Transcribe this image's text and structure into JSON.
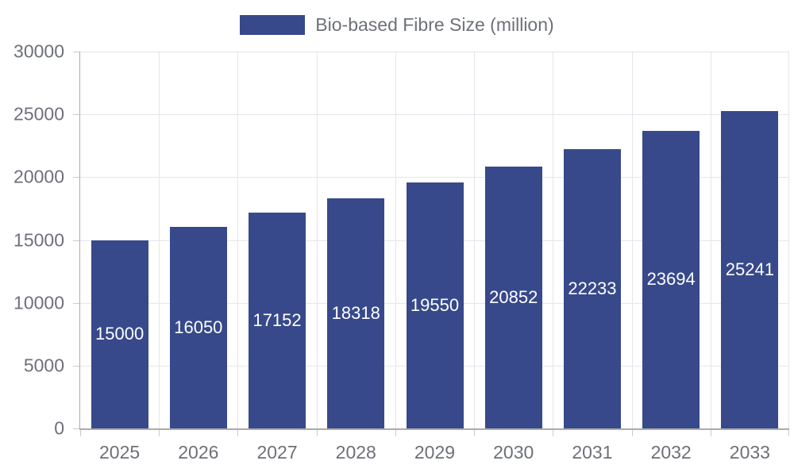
{
  "chart_data": {
    "type": "bar",
    "title": "",
    "legend": "Bio-based Fibre Size (million)",
    "legend_position": "top-center",
    "categories": [
      "2025",
      "2026",
      "2027",
      "2028",
      "2029",
      "2030",
      "2031",
      "2032",
      "2033"
    ],
    "values": [
      15000,
      16050,
      17152,
      18318,
      19550,
      20852,
      22233,
      23694,
      25241
    ],
    "xlabel": "",
    "ylabel": "",
    "ylim": [
      0,
      30000
    ],
    "ytick_step": 5000,
    "ytick_labels": [
      "0",
      "5000",
      "10000",
      "15000",
      "20000",
      "25000",
      "30000"
    ],
    "grid": true,
    "value_labels_shown": true,
    "colors": {
      "bar": "#37498A",
      "bar_value_text": "#FFFFFF",
      "axis_text": "#6E7079",
      "axis_line": "#ABABAB",
      "grid_line": "#E5E6EB",
      "tick_mark": "#CBCBCB"
    }
  }
}
